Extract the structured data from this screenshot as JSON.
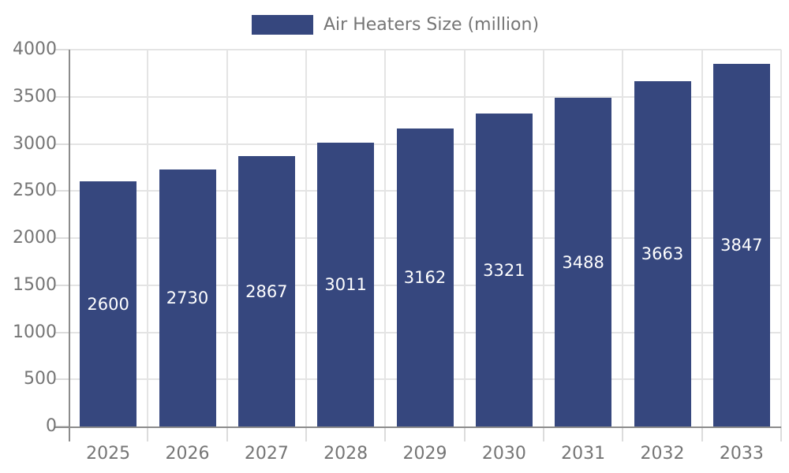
{
  "chart_data": {
    "type": "bar",
    "categories": [
      "2025",
      "2026",
      "2027",
      "2028",
      "2029",
      "2030",
      "2031",
      "2032",
      "2033"
    ],
    "values": [
      2600,
      2730,
      2867,
      3011,
      3162,
      3321,
      3488,
      3663,
      3847
    ],
    "series_name": "Air Heaters Size (million)",
    "title": "",
    "xlabel": "",
    "ylabel": "",
    "ylim": [
      0,
      4000
    ],
    "yticks": [
      0,
      500,
      1000,
      1500,
      2000,
      2500,
      3000,
      3500,
      4000
    ],
    "grid": true,
    "legend_position": "top-center",
    "value_labels": "inside-center"
  },
  "colors": {
    "bar_fill": "#36477E",
    "value_label": "#FFFFFF",
    "axis_text": "#757575",
    "legend_text": "#757575",
    "gridline": "#E4E4E4",
    "axis_line": "#8C8C8C",
    "background": "#FFFFFF"
  }
}
